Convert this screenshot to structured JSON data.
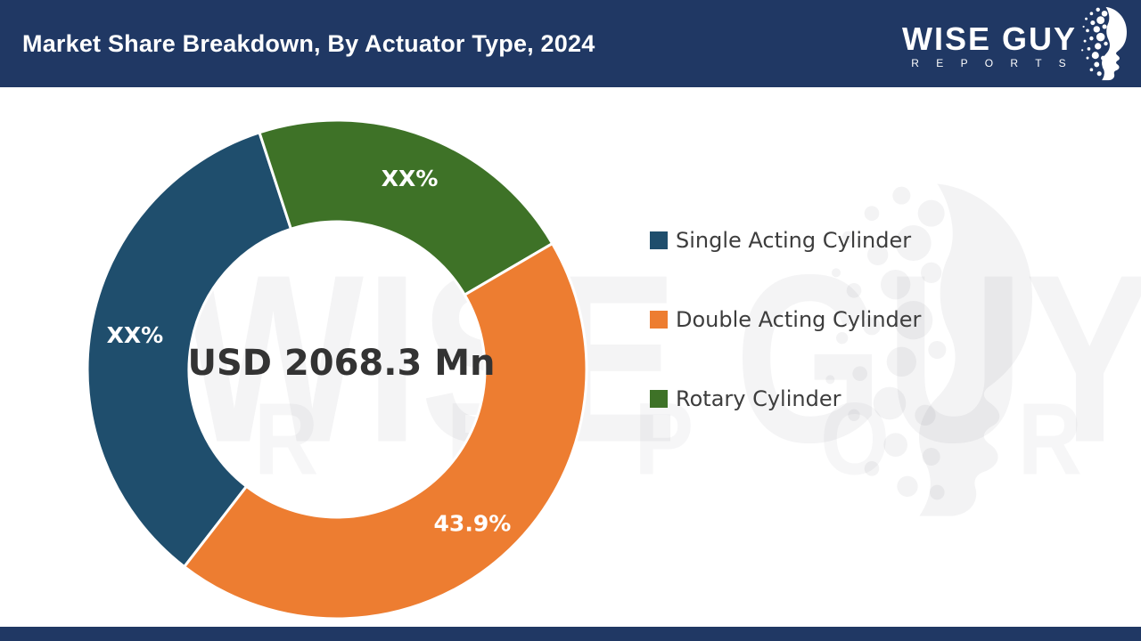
{
  "header": {
    "title": "Market Share Breakdown, By Actuator Type, 2024",
    "logo": {
      "wordmark": "WISE GUY",
      "subtitle": "R E P O R T S"
    }
  },
  "watermark": {
    "line1": "WISE GUY",
    "line2": "R E P O R T S"
  },
  "chart_data": {
    "type": "pie",
    "subtype": "donut",
    "title": "Market Share Breakdown, By Actuator Type, 2024",
    "center_label": "USD 2068.3 Mn",
    "units": "percent of market share",
    "start_angle_deg": 217.7,
    "outer_radius": 280,
    "inner_radius": 166,
    "label_radius": 230,
    "legend_position": "right",
    "slices": [
      {
        "name": "Single Acting Cylinder",
        "display_label": "XX%",
        "value_pct": 34.5,
        "color": "#1f4e6d"
      },
      {
        "name": "Rotary Cylinder",
        "display_label": "XX%",
        "value_pct": 21.6,
        "color": "#3e7227"
      },
      {
        "name": "Double Acting Cylinder",
        "display_label": "43.9%",
        "value_pct": 43.9,
        "color": "#ed7d31"
      }
    ]
  },
  "legend": {
    "items": [
      {
        "label": "Single Acting Cylinder",
        "color": "#1f4e6d"
      },
      {
        "label": "Double Acting Cylinder",
        "color": "#ed7d31"
      },
      {
        "label": "Rotary Cylinder",
        "color": "#3e7227"
      }
    ]
  },
  "colors": {
    "header_bar": "#203864",
    "footer_bar": "#203864",
    "slice_gap": "#ffffff",
    "center_text": "#333333",
    "legend_text": "#3d3d3d"
  }
}
